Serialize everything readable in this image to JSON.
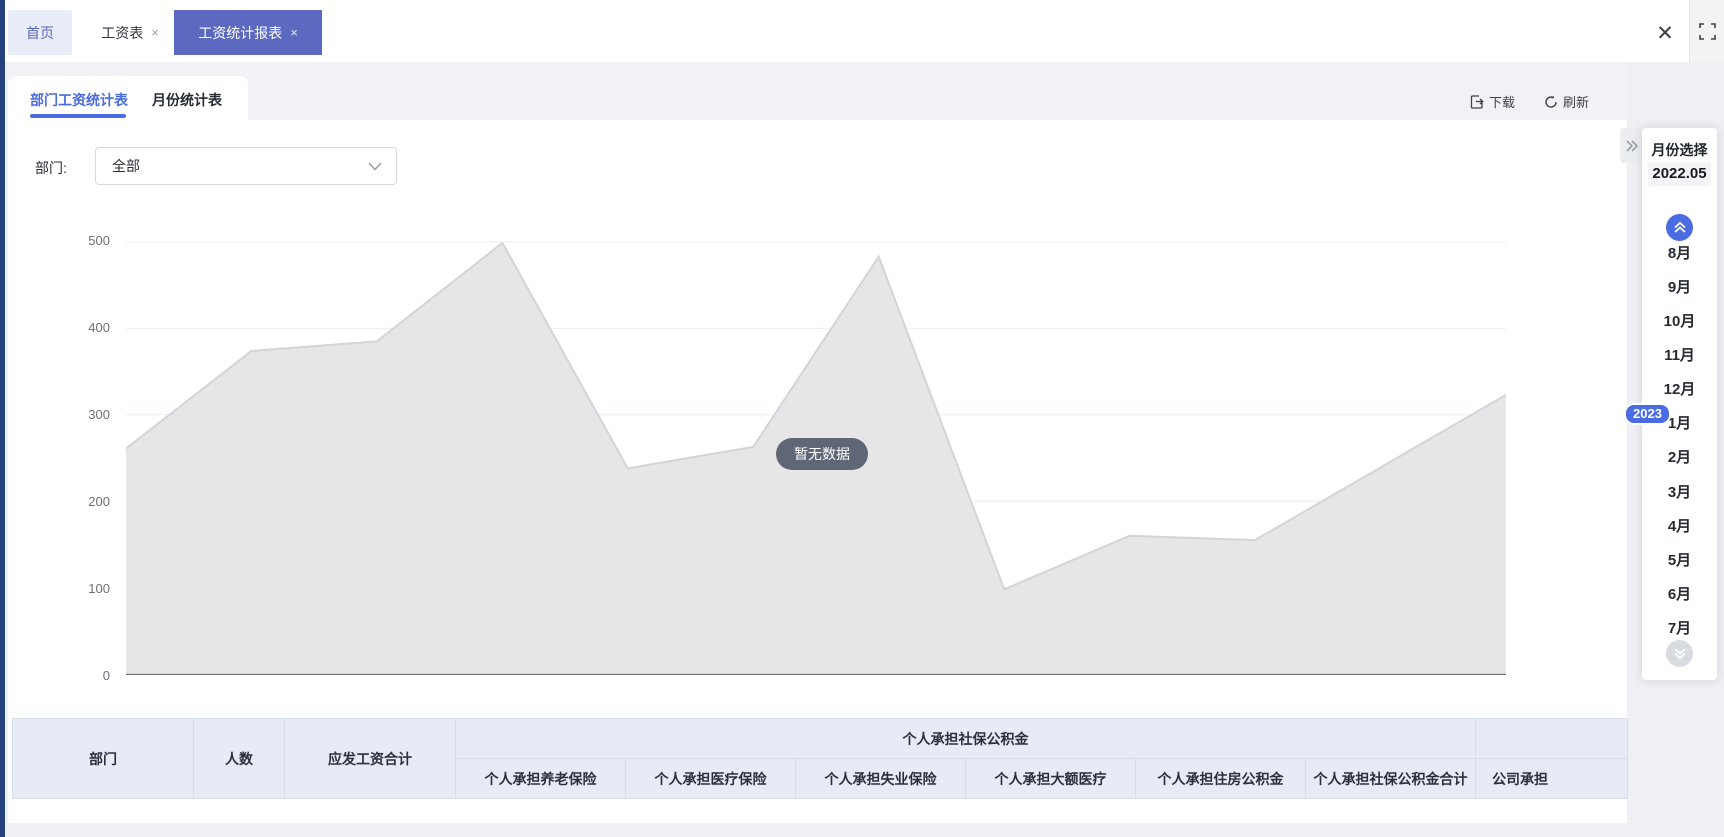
{
  "top_tabs": [
    {
      "label": "首页"
    },
    {
      "label": "工资表",
      "close": "×"
    },
    {
      "label": "工资统计报表",
      "close": "×"
    }
  ],
  "window": {
    "close_glyph": "✕"
  },
  "view_tabs": [
    {
      "label": "部门工资统计表"
    },
    {
      "label": "月份统计表"
    }
  ],
  "actions": {
    "download": "下载",
    "refresh": "刷新"
  },
  "filter": {
    "label": "部门:",
    "value": "全部"
  },
  "chart_data": {
    "type": "area",
    "title": "",
    "values": [
      261,
      374,
      385,
      499,
      238,
      263,
      483,
      98,
      160,
      155,
      239,
      323
    ],
    "x_tick_labels": [],
    "ylim": [
      0,
      500
    ],
    "y_ticks": [
      0,
      100,
      200,
      300,
      400,
      500
    ],
    "y_tick_labels": [
      "0",
      "100",
      "200",
      "300",
      "400",
      "500"
    ],
    "grid": true,
    "legend": "none",
    "series_color": "#e3e3e3",
    "line_color": "#d2d4d8",
    "axis_color": "#6b6f77",
    "no_data_label": "暂无数据"
  },
  "month_panel": {
    "title": "月份选择",
    "current": "2022.05",
    "year_badge": "2023",
    "months": [
      "8月",
      "9月",
      "10月",
      "11月",
      "12月",
      "1月",
      "2月",
      "3月",
      "4月",
      "5月",
      "6月",
      "7月"
    ]
  },
  "table": {
    "col_department": "部门",
    "col_headcount": "人数",
    "col_gross_total": "应发工资合计",
    "group_personal": "个人承担社保公积金",
    "sub_columns": [
      "个人承担养老保险",
      "个人承担医疗保险",
      "个人承担失业保险",
      "个人承担大额医疗",
      "个人承担住房公积金",
      "个人承担社保公积金合计"
    ],
    "col_company_clipped": "公司承担"
  }
}
